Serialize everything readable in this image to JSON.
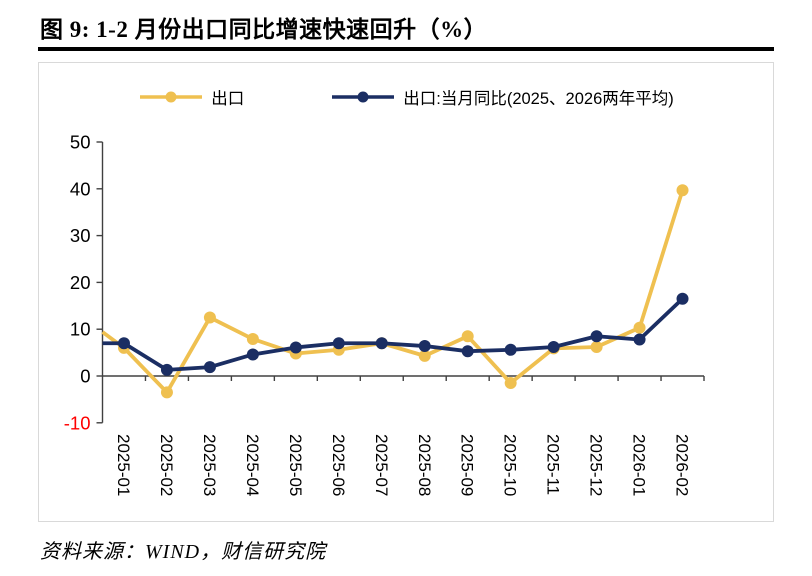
{
  "title": "图 9:  1-2 月份出口同比增速快速回升（%）",
  "source": "资料来源：WIND，财信研究院",
  "colors": {
    "export_line": "#EFC050",
    "avg_line": "#1B2E63",
    "negative_tick": "#FF0000",
    "axis": "#404040",
    "card_border": "#D9D9D9"
  },
  "legend": [
    {
      "label": "出口",
      "color": "#EFC050"
    },
    {
      "label": "出口:当月同比(2025、2026两年平均)",
      "color": "#1B2E63"
    }
  ],
  "chart_data": {
    "type": "line",
    "title": "图 9:  1-2 月份出口同比增速快速回升（%）",
    "categories": [
      "2025-01",
      "2025-02",
      "2025-03",
      "2025-04",
      "2025-05",
      "2025-06",
      "2025-07",
      "2025-08",
      "2025-09",
      "2025-10",
      "2025-11",
      "2025-12",
      "2026-01",
      "2026-02"
    ],
    "series": [
      {
        "name": "出口",
        "color": "#EFC050",
        "values": [
          6.0,
          -3.5,
          12.5,
          7.9,
          4.8,
          5.6,
          7.0,
          4.3,
          8.5,
          -1.5,
          5.9,
          6.2,
          10.3,
          39.7
        ],
        "edge_start": 9.4
      },
      {
        "name": "出口:当月同比(2025、2026两年平均)",
        "color": "#1B2E63",
        "values": [
          7.0,
          1.3,
          1.9,
          4.6,
          6.1,
          7.0,
          7.0,
          6.4,
          5.3,
          5.6,
          6.2,
          8.5,
          7.8,
          16.5
        ],
        "edge_start": 7.0
      }
    ],
    "ylim": [
      -10,
      50
    ],
    "yticks": [
      50,
      40,
      30,
      20,
      10,
      0,
      -10
    ],
    "xlabel": "",
    "ylabel": "",
    "grid": false,
    "legend_position": "top",
    "x_axis_at_zero": true
  }
}
